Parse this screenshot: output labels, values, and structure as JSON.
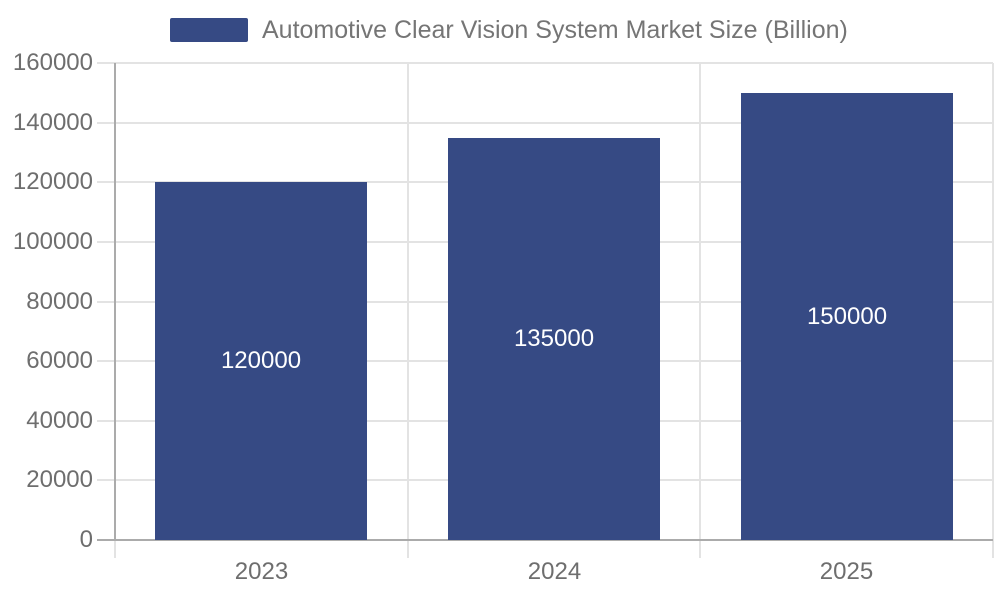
{
  "page": {
    "background": "#ffffff"
  },
  "legend": {
    "label": "Automotive Clear Vision System Market Size (Billion)"
  },
  "chart_data": {
    "type": "bar",
    "title": "Automotive Clear Vision System Market Size (Billion)",
    "categories": [
      "2023",
      "2024",
      "2025"
    ],
    "series": [
      {
        "name": "Automotive Clear Vision System Market Size (Billion)",
        "values": [
          120000,
          135000,
          150000
        ]
      }
    ],
    "bar_labels": [
      "120000",
      "135000",
      "150000"
    ],
    "xlabel": "",
    "ylabel": "",
    "ylim": [
      0,
      160000
    ],
    "yticks": [
      0,
      20000,
      40000,
      60000,
      80000,
      100000,
      120000,
      140000,
      160000
    ],
    "ytick_labels": [
      "0",
      "20000",
      "40000",
      "60000",
      "80000",
      "100000",
      "120000",
      "140000",
      "160000"
    ],
    "grid": true,
    "legend_position": "top",
    "colors": {
      "bar": "#364a84",
      "bar_label_text": "#ffffff",
      "axis_line": "#ababab",
      "grid_line": "#e3e3e3",
      "tick_text": "#6e6e6e",
      "legend_text": "#757575"
    }
  }
}
